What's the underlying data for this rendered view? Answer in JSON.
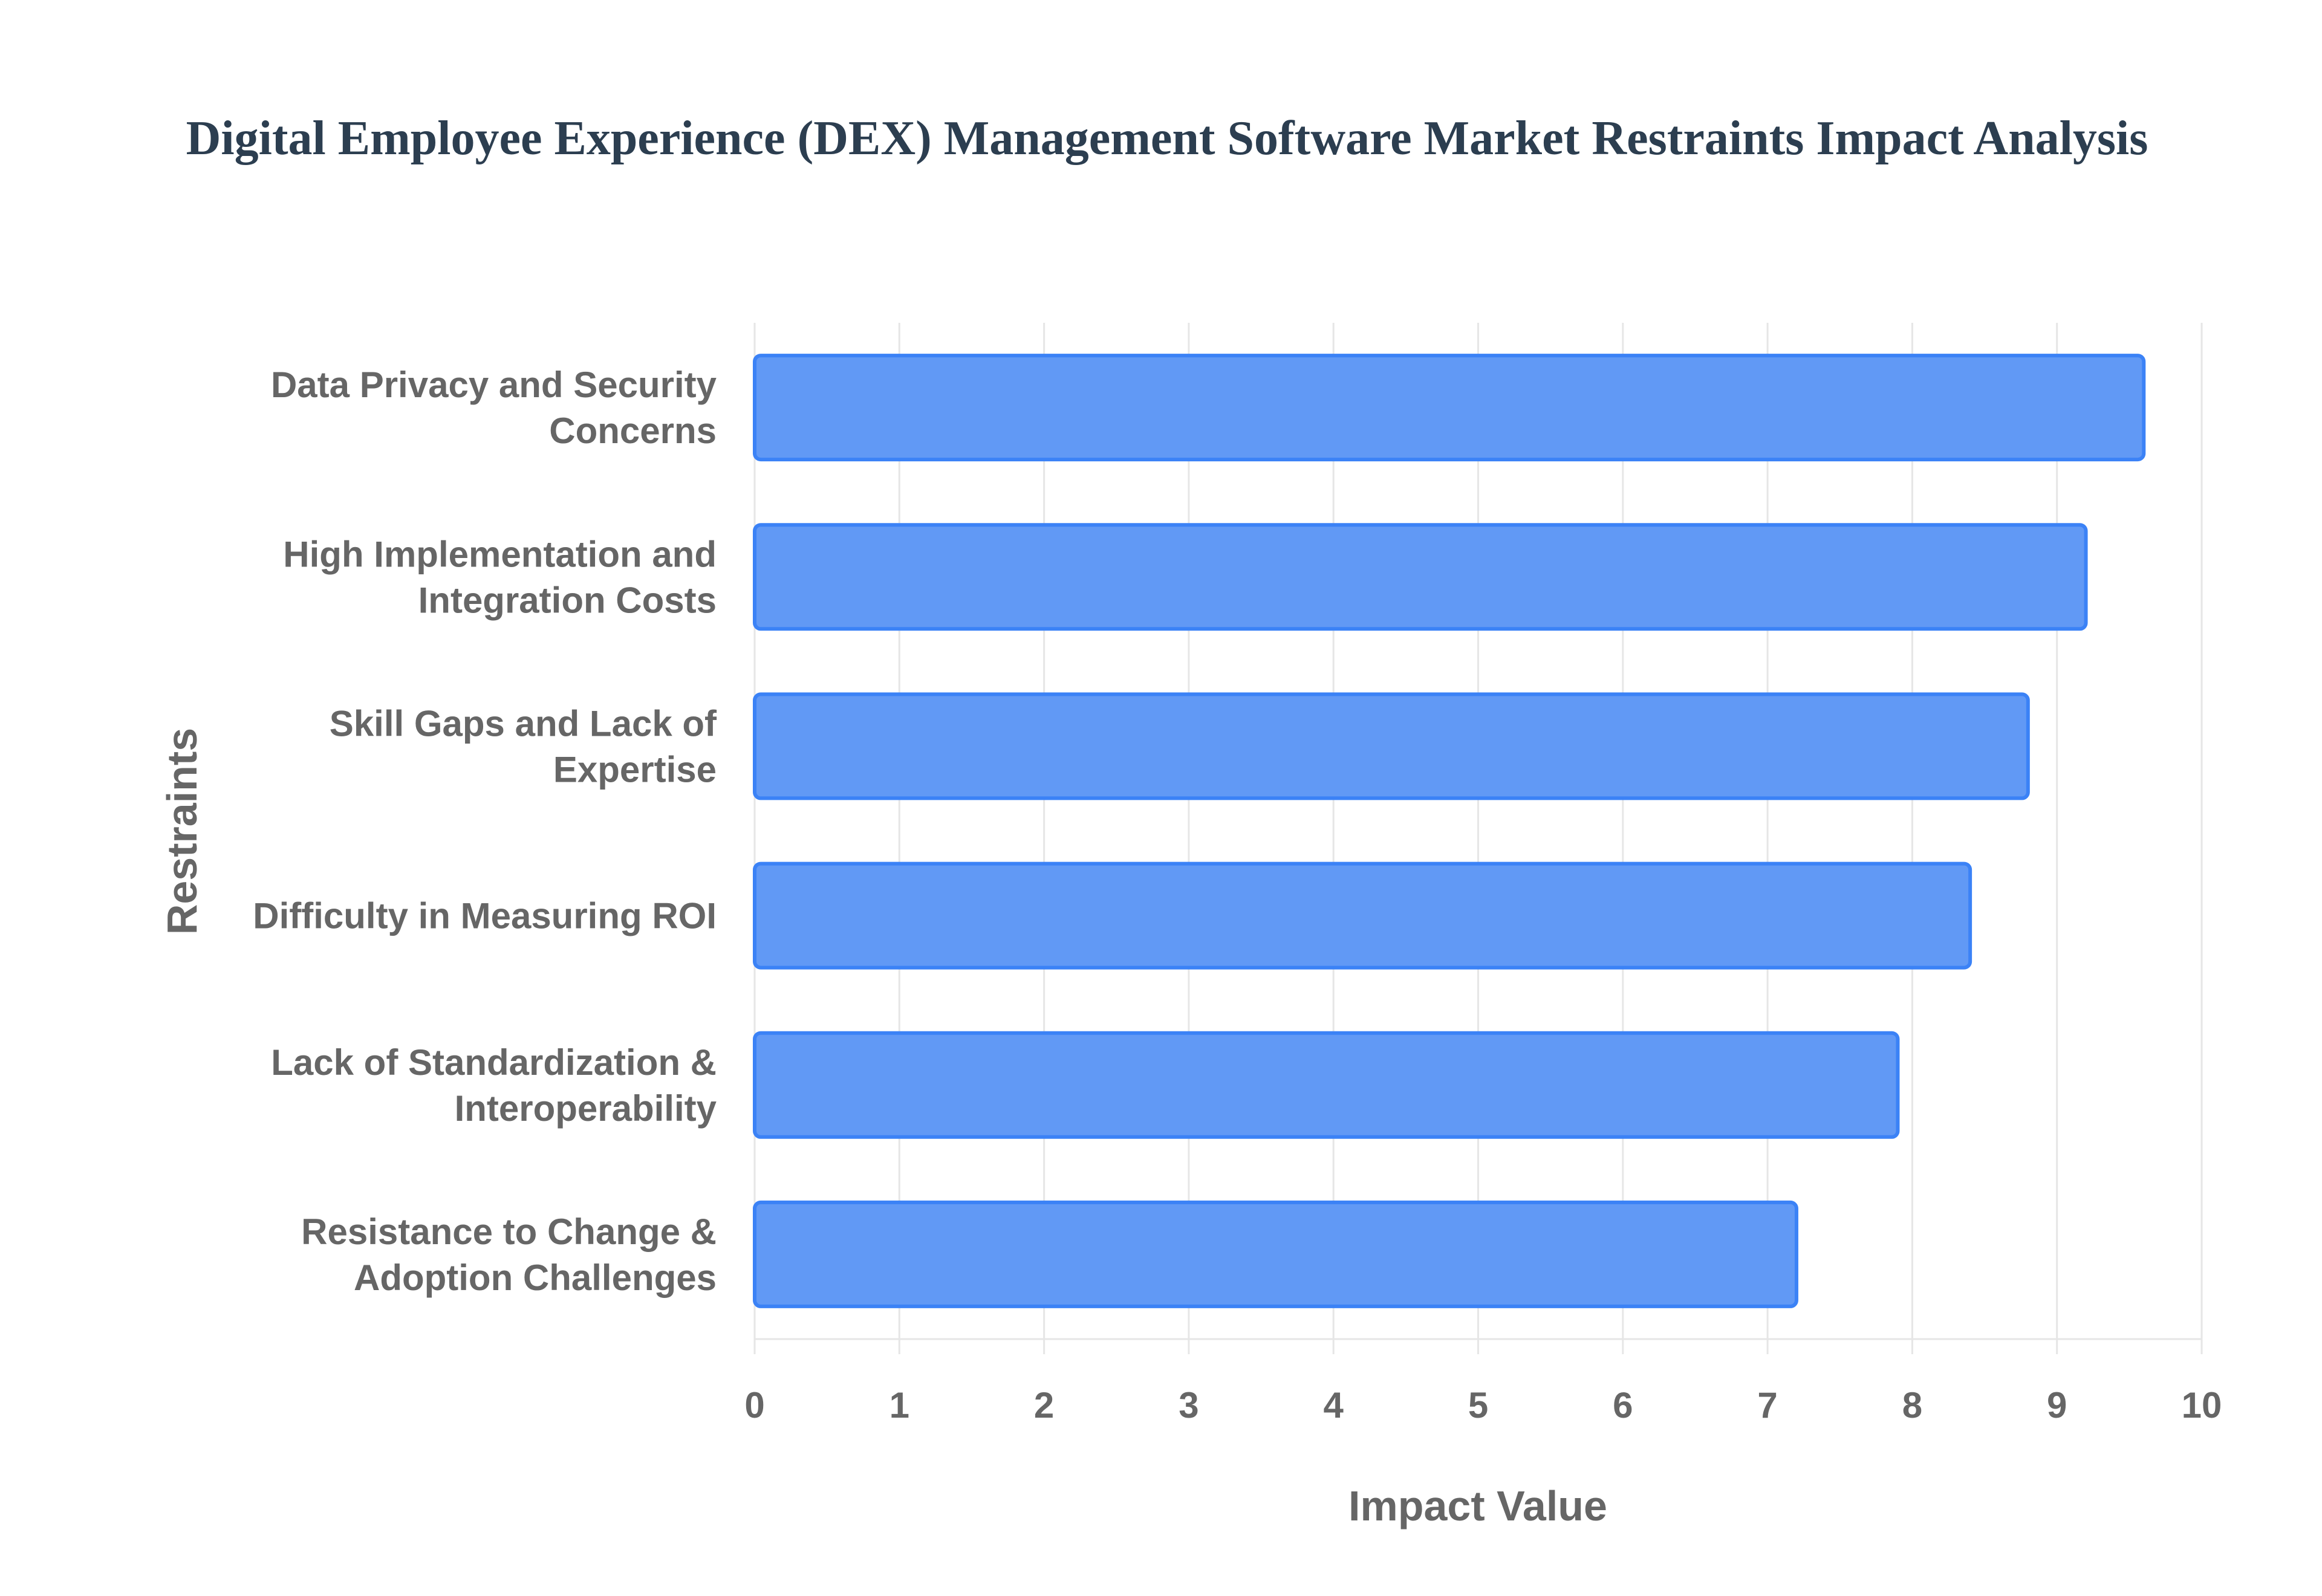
{
  "chart_data": {
    "type": "bar",
    "orientation": "horizontal",
    "title": "Digital Employee Experience (DEX) Management Software Market Restraints Impact Analysis",
    "xlabel": "Impact Value",
    "ylabel": "Restraints",
    "xlim": [
      0,
      10
    ],
    "xticks": [
      "0",
      "1",
      "2",
      "3",
      "4",
      "5",
      "6",
      "7",
      "8",
      "9",
      "10"
    ],
    "grid": true,
    "categories": [
      [
        "Data Privacy and Security",
        "Concerns"
      ],
      [
        "High Implementation and",
        "Integration Costs"
      ],
      [
        "Skill Gaps and Lack of",
        "Expertise"
      ],
      [
        "Difficulty in Measuring ROI"
      ],
      [
        "Lack of Standardization &",
        "Interoperability"
      ],
      [
        "Resistance to Change &",
        "Adoption Challenges"
      ]
    ],
    "values": [
      9.6,
      9.2,
      8.8,
      8.4,
      7.9,
      7.2
    ],
    "colors": {
      "bar_fill": "#6199f5",
      "bar_border": "#3b82f6",
      "grid": "#e6e6e6",
      "text": "#666666",
      "title": "#2c3e50"
    }
  }
}
